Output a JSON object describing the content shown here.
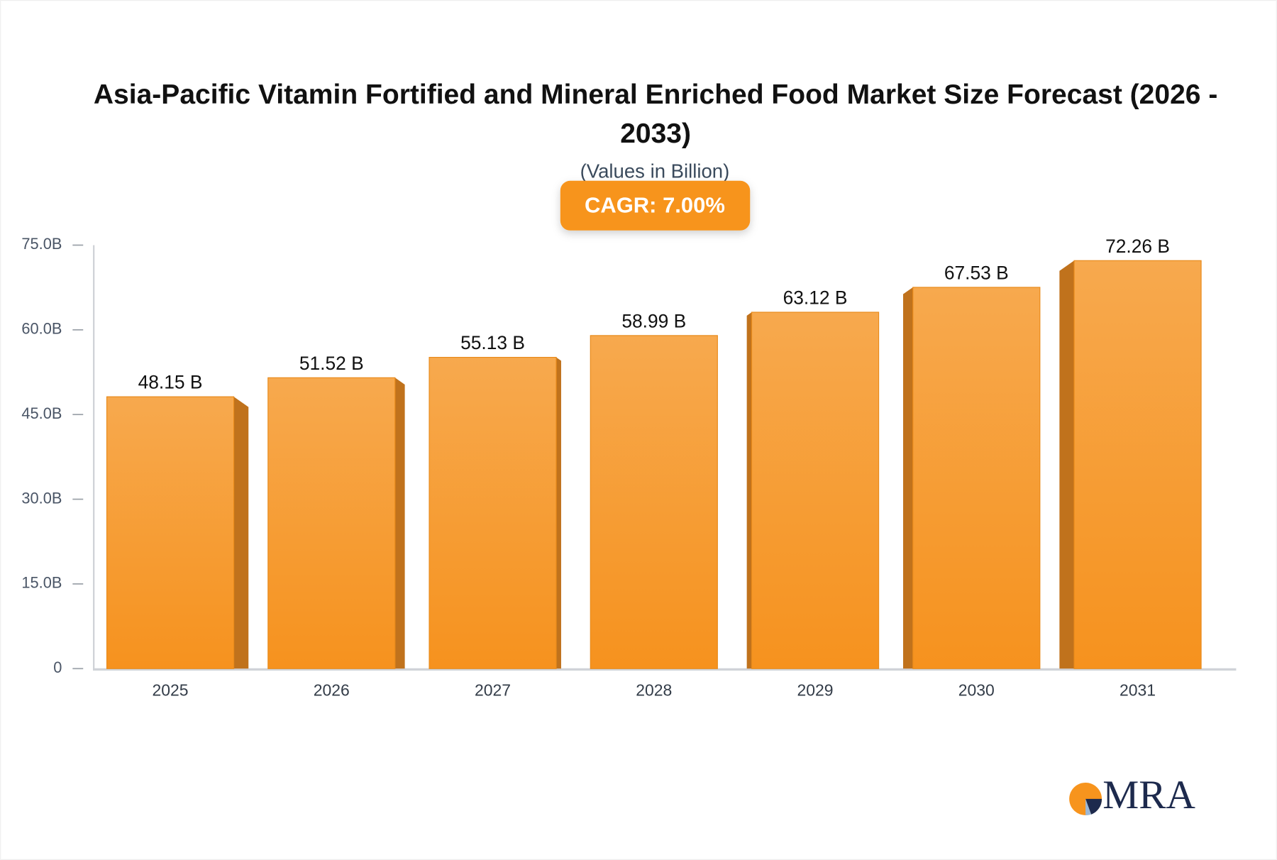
{
  "chart_data": {
    "type": "bar",
    "title": "Asia-Pacific Vitamin Fortified and Mineral Enriched Food Market Size Forecast (2026 - 2033)",
    "subtitle": "(Values in Billion)",
    "annotation": "CAGR: 7.00%",
    "categories": [
      "2025",
      "2026",
      "2027",
      "2028",
      "2029",
      "2030",
      "2031"
    ],
    "values": [
      48.15,
      51.52,
      55.13,
      58.99,
      63.12,
      67.53,
      72.26
    ],
    "value_labels": [
      "48.15 B",
      "51.52 B",
      "55.13 B",
      "58.99 B",
      "63.12 B",
      "67.53 B",
      "72.26 B"
    ],
    "color": "#f7a042",
    "ylim": [
      0,
      75
    ],
    "yticks": [
      0,
      {
        "value": 15,
        "label": "15.0B"
      },
      {
        "value": 30,
        "label": "30.0B"
      },
      {
        "value": 45,
        "label": "45.0B"
      },
      {
        "value": 60,
        "label": "60.0B"
      },
      {
        "value": 75,
        "label": "75.0B"
      }
    ],
    "grid": false
  },
  "logo": "MRA"
}
